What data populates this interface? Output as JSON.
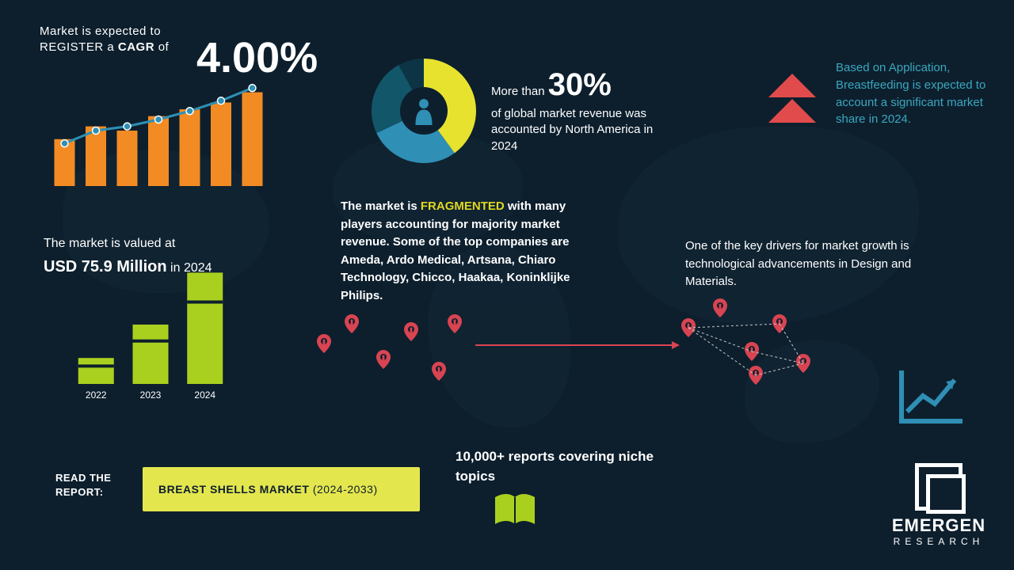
{
  "background_color": "#0d1f2d",
  "text_color": "#ffffff",
  "cagr": {
    "prefix_line1": "Market is expected to",
    "prefix_line2_html": "REGISTER a <b>CAGR</b> of",
    "value": "4.00%",
    "value_fontsize": 54
  },
  "cagr_chart": {
    "type": "bar+line",
    "bar_color": "#f28b24",
    "line_color": "#2f8fb5",
    "marker_color": "#2f8fb5",
    "bars": [
      55,
      70,
      65,
      82,
      90,
      98,
      110
    ],
    "line_points": [
      50,
      65,
      70,
      78,
      88,
      100,
      115
    ],
    "ylim": [
      0,
      130
    ],
    "bg": "transparent"
  },
  "donut": {
    "type": "donut",
    "slices": [
      {
        "value": 40,
        "color": "#e7e22e"
      },
      {
        "value": 28,
        "color": "#2f8fb5"
      },
      {
        "value": 24,
        "color": "#12566a"
      },
      {
        "value": 8,
        "color": "#0d3444"
      }
    ],
    "center_icon": "person-icon",
    "center_icon_color": "#2f8fb5"
  },
  "donut_text": {
    "lead": "More than",
    "pct": "30%",
    "rest": "of global market revenue was accounted by North America in 2024"
  },
  "arrow_up_color": "#e24b4b",
  "application_text": "Based on Application, Breastfeeding is expected to account a significant market share in 2024.",
  "application_text_color": "#3aa7bf",
  "fragmented": {
    "before": "The market is ",
    "hl": "FRAGMENTED",
    "after": " with many players accounting for majority market revenue. Some of the top companies are Ameda, Ardo Medical, Artsana, Chiaro Technology, Chicco, Haakaa, Koninklijke Philips.",
    "hl_color": "#e0d820"
  },
  "valuation": {
    "line1": "The market is valued at",
    "value": "USD 75.9 Million",
    "suffix": " in 2024"
  },
  "green_bars": {
    "type": "bar",
    "bar_color": "#aad01f",
    "categories": [
      "2022",
      "2023",
      "2024"
    ],
    "values": [
      35,
      80,
      150
    ],
    "ylim": [
      0,
      160
    ],
    "bar_width": 0.55,
    "label_color": "#ffffff",
    "label_fontsize": 12
  },
  "driver_text": "One of the key drivers for market growth is technological advancements in Design and Materials.",
  "trend_icon_color": "#2f8fb5",
  "read_report": {
    "label": "READ THE REPORT:",
    "title": "BREAST SHELLS MARKET",
    "range": "(2024-2033)",
    "band_bg": "#e4e64e",
    "crescent_color": "#e4e64e"
  },
  "reports_count": "10,000+ reports covering niche topics",
  "book_icon_color": "#aad01f",
  "pin_color": "#d94452",
  "logo": {
    "name": "EMERGEN",
    "sub": "RESEARCH"
  }
}
